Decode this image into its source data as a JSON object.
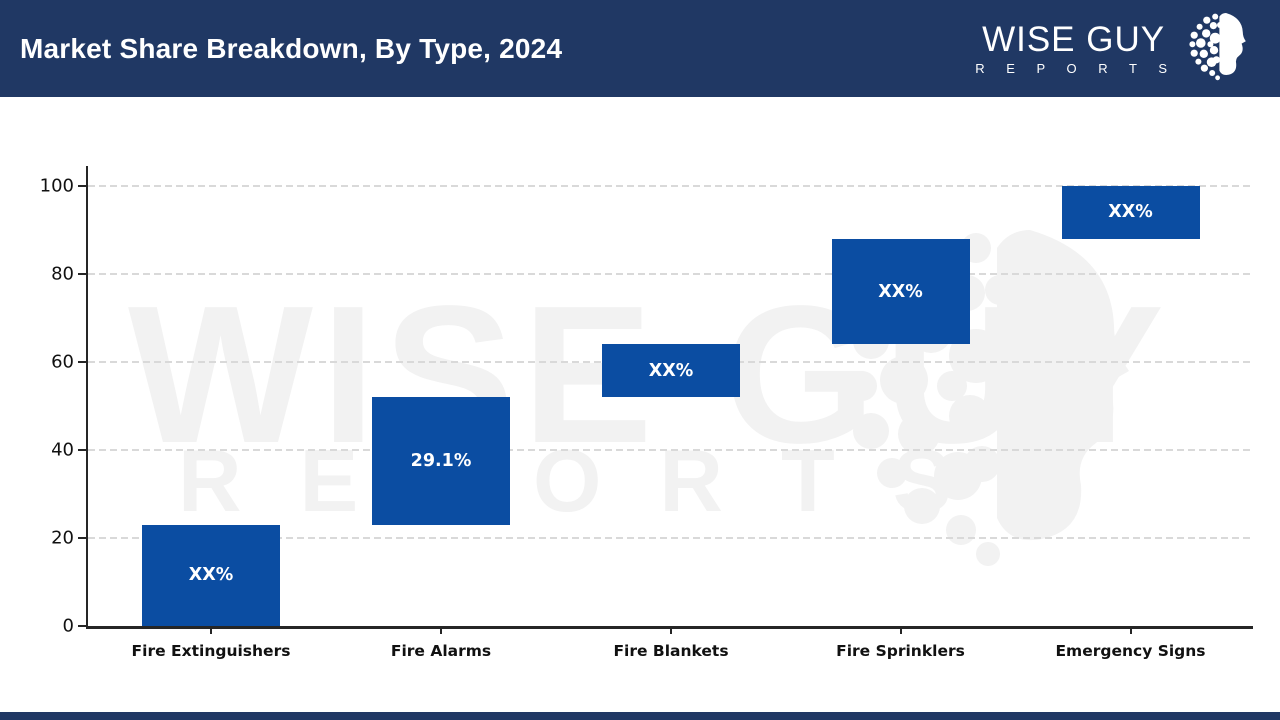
{
  "header": {
    "title": "Market Share Breakdown, By Type, 2024",
    "bg_color": "#203864",
    "logo": {
      "line1": "WISE GUY",
      "line2": "R E P O R T S"
    }
  },
  "watermark": {
    "line1": "WISE GUY",
    "line2": "REPORTS"
  },
  "chart_data": {
    "type": "bar",
    "subtype": "waterfall",
    "title": "Market Share Breakdown, By Type, 2024",
    "categories": [
      "Fire Extinguishers",
      "Fire Alarms",
      "Fire Blankets",
      "Fire Sprinklers",
      "Emergency Signs"
    ],
    "segments": [
      {
        "category": "Fire Extinguishers",
        "start": 0,
        "end": 23,
        "label": "XX%"
      },
      {
        "category": "Fire Alarms",
        "start": 23,
        "end": 52.1,
        "label": "29.1%"
      },
      {
        "category": "Fire Blankets",
        "start": 52.1,
        "end": 64,
        "label": "XX%"
      },
      {
        "category": "Fire Sprinklers",
        "start": 64,
        "end": 88,
        "label": "XX%"
      },
      {
        "category": "Emergency Signs",
        "start": 88,
        "end": 100,
        "label": "XX%"
      }
    ],
    "yticks": [
      0,
      20,
      40,
      60,
      80,
      100
    ],
    "ylim": [
      0,
      105
    ],
    "xlabel": "",
    "ylabel": "",
    "grid": true,
    "grid_style": "dashed",
    "legend": false,
    "bar_color": "#0b4da2",
    "bar_label_color": "#ffffff",
    "axis_color": "#262626"
  }
}
